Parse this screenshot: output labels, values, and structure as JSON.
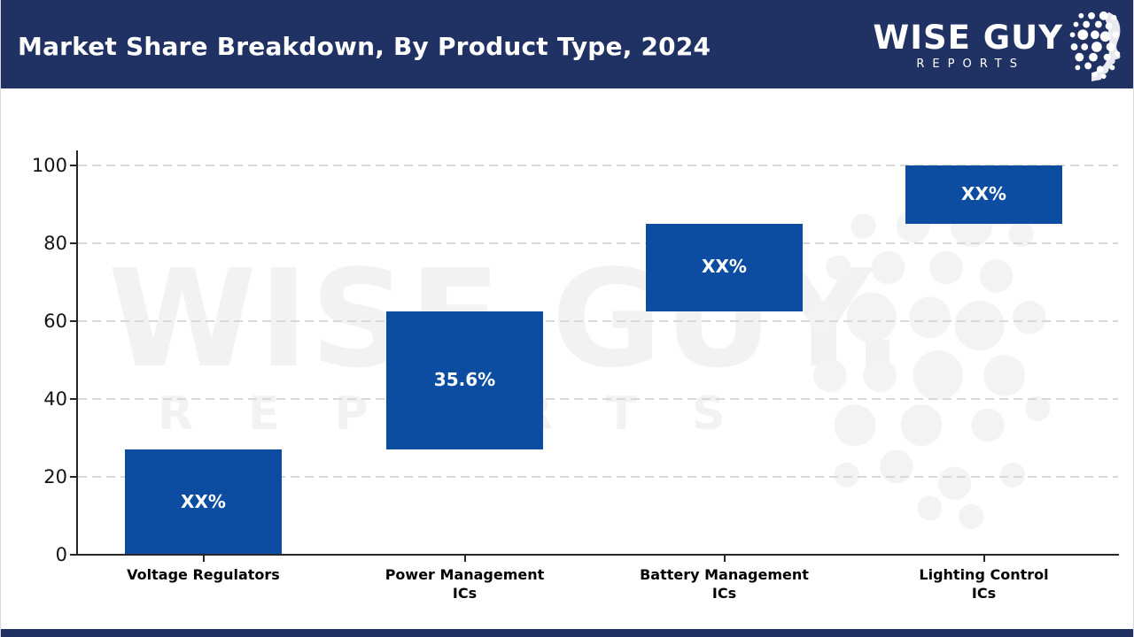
{
  "header": {
    "title": "Market Share Breakdown, By Product Type, 2024",
    "logo": {
      "line1": "WISE GUY",
      "line2": "REPORTS"
    }
  },
  "watermark": {
    "line1": "WISE GUY.",
    "line2": "REPORTS"
  },
  "chart_data": {
    "type": "bar",
    "subtype": "waterfall",
    "title": "Market Share Breakdown, By Product Type, 2024",
    "categories": [
      "Voltage Regulators",
      "Power Management\nICs",
      "Battery Management\nICs",
      "Lighting Control\nICs"
    ],
    "segments": [
      {
        "category": "Voltage Regulators",
        "start": 0,
        "end": 27,
        "label": "XX%"
      },
      {
        "category": "Power Management ICs",
        "start": 27,
        "end": 62.6,
        "label": "35.6%"
      },
      {
        "category": "Battery Management ICs",
        "start": 62.6,
        "end": 85,
        "label": "XX%"
      },
      {
        "category": "Lighting Control ICs",
        "start": 85,
        "end": 100,
        "label": "XX%"
      }
    ],
    "yticks": [
      0,
      20,
      40,
      60,
      80,
      100
    ],
    "ylim": [
      0,
      104
    ],
    "xlabel": "",
    "ylabel": "",
    "grid": "horizontal-dashed",
    "legend": "none",
    "bar_color": "#0c4da2",
    "label_color": "#ffffff",
    "axis_color": "#262626",
    "grid_color": "#d9d9d9",
    "header_color": "#203164",
    "watermark_color": "#f2f2f2"
  }
}
